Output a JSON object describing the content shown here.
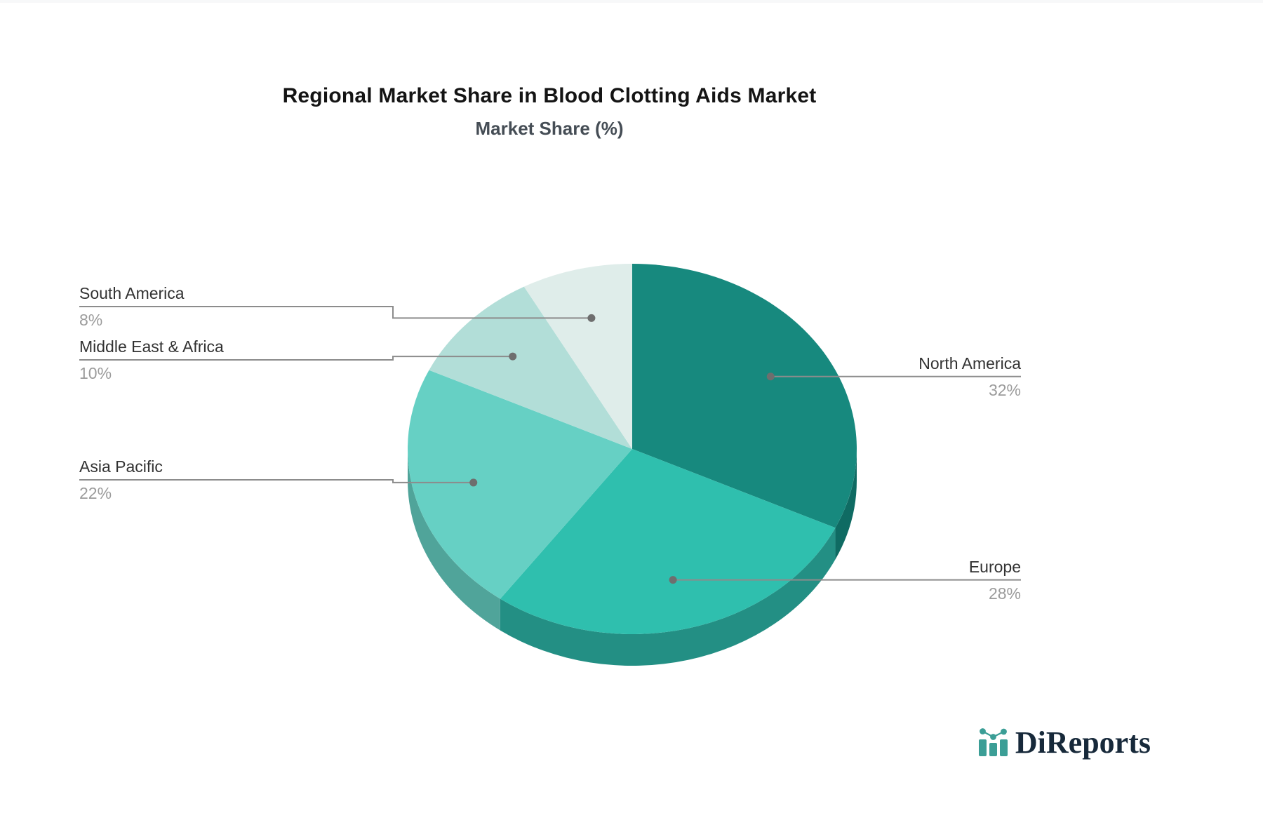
{
  "chart_data": {
    "type": "pie",
    "title": "Regional Market Share in Blood Clotting Aids Market",
    "subtitle": "Market Share (%)",
    "unit": "%",
    "total": 100,
    "style": "3d-pie",
    "direction": "clockwise",
    "start_angle": "12-oclock",
    "legend": "none",
    "slices": [
      {
        "name": "North America",
        "value": 32,
        "pct_label": "32%",
        "color": "#17897E",
        "side_color": "#0F6B63"
      },
      {
        "name": "Europe",
        "value": 28,
        "pct_label": "28%",
        "color": "#2FBFAE",
        "side_color": "#238F84"
      },
      {
        "name": "Asia Pacific",
        "value": 22,
        "pct_label": "22%",
        "color": "#66D0C4",
        "side_color": "#50A49A"
      },
      {
        "name": "Middle East & Africa",
        "value": 10,
        "pct_label": "10%",
        "color": "#B2DED8",
        "side_color": "#8FB8B2"
      },
      {
        "name": "South America",
        "value": 8,
        "pct_label": "8%",
        "color": "#DFEDEA",
        "side_color": "#B5C9C6"
      }
    ],
    "leader_line_color": "#8C8C8C",
    "leader_dot_color": "#6E6E6E",
    "label_name_color": "#323232",
    "label_pct_color": "#9B9B9B"
  },
  "logo": {
    "text": "DiReports",
    "icon": "bar-chart-logo-icon",
    "icon_color": "#3B9E96",
    "text_color": "#17293A"
  }
}
